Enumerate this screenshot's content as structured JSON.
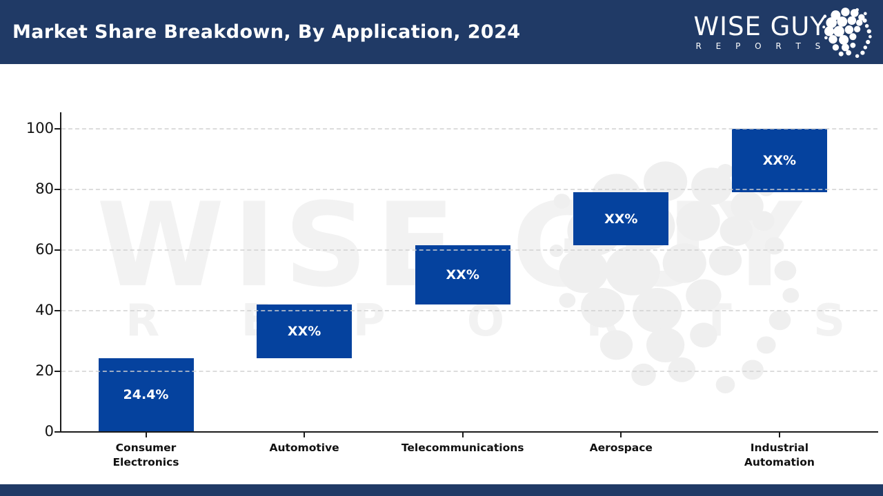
{
  "header": {
    "title": "Market Share Breakdown, By Application, 2024",
    "bg_color": "#203a66",
    "logo": {
      "line1": "WISE GUY",
      "line2": "R E P O R T S"
    }
  },
  "watermark": {
    "line1": "WISE GUY",
    "line2": "R E P O R T S"
  },
  "footer": {
    "bg_color": "#203a66"
  },
  "chart_data": {
    "type": "bar",
    "subtype": "floating-waterfall",
    "title": "Market Share Breakdown, By Application, 2024",
    "categories": [
      "Consumer Electronics",
      "Automotive",
      "Telecommunications",
      "Aerospace",
      "Industrial Automation"
    ],
    "category_lines": [
      [
        "Consumer",
        "Electronics"
      ],
      [
        "Automotive"
      ],
      [
        "Telecommunications"
      ],
      [
        "Aerospace"
      ],
      [
        "Industrial",
        "Automation"
      ]
    ],
    "segments": [
      {
        "category": "Consumer Electronics",
        "start": 0,
        "end": 24.4,
        "label": "24.4%"
      },
      {
        "category": "Automotive",
        "start": 24.4,
        "end": 42,
        "label": "XX%"
      },
      {
        "category": "Telecommunications",
        "start": 42,
        "end": 61.5,
        "label": "XX%"
      },
      {
        "category": "Aerospace",
        "start": 61.5,
        "end": 79,
        "label": "XX%"
      },
      {
        "category": "Industrial Automation",
        "start": 79,
        "end": 100,
        "label": "XX%"
      }
    ],
    "yticks": [
      0,
      20,
      40,
      60,
      80,
      100
    ],
    "ylim": [
      0,
      105
    ],
    "xlabel": "",
    "ylabel": "",
    "grid": "horizontal-dashed",
    "legend": "none",
    "bar_color": "#05429e",
    "bar_label_color": "#ffffff",
    "axis_color": "#1a1a1a",
    "gridline_color": "#d8d8d8"
  }
}
